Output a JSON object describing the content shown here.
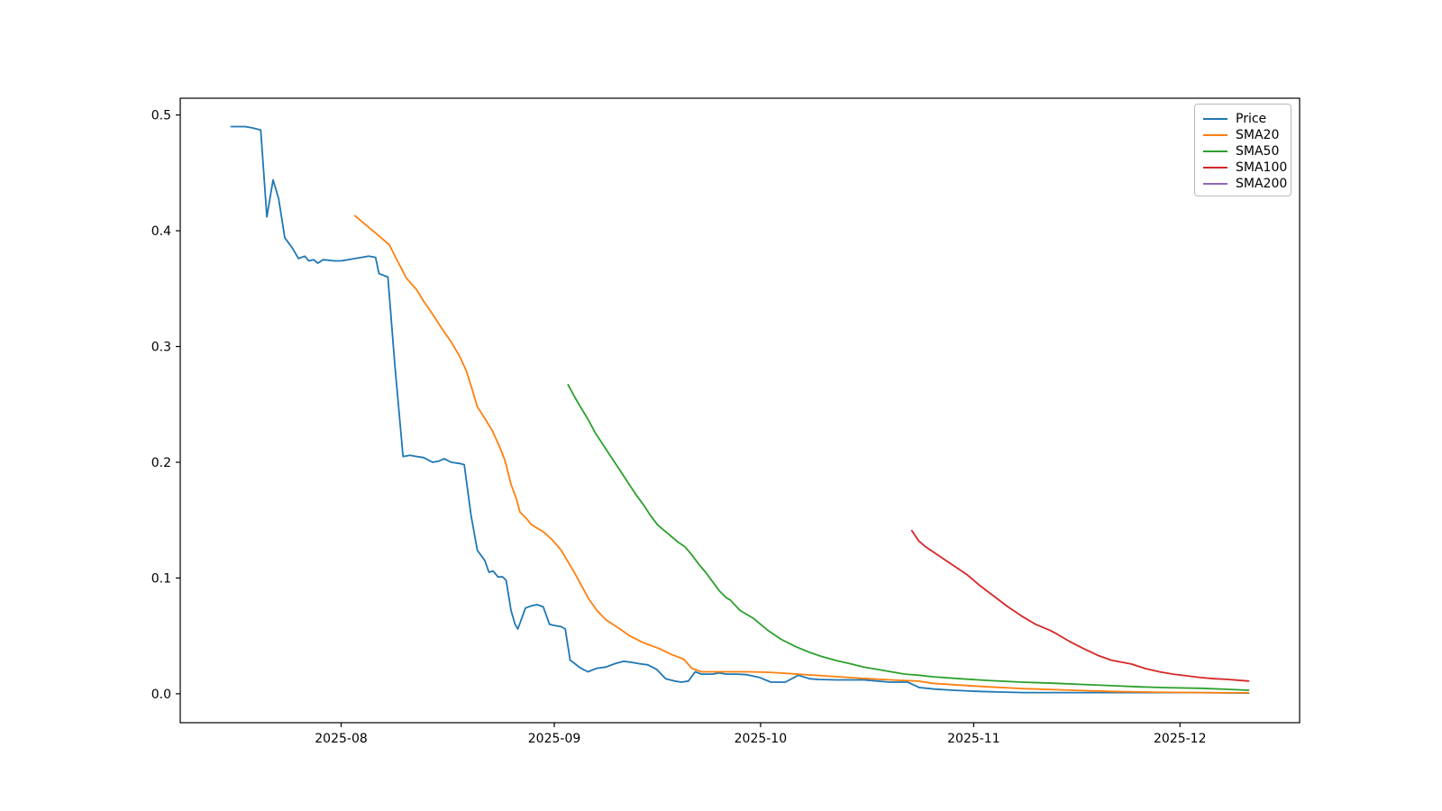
{
  "figure": {
    "background_color": "#ffffff",
    "axes_edge_color": "#000000",
    "tick_color": "#000000"
  },
  "legend": {
    "position": "upper right",
    "items": [
      {
        "label": "Price",
        "color": "#1f77b4"
      },
      {
        "label": "SMA20",
        "color": "#ff7f0e"
      },
      {
        "label": "SMA50",
        "color": "#2ca02c"
      },
      {
        "label": "SMA100",
        "color": "#d62728"
      },
      {
        "label": "SMA200",
        "color": "#9467bd"
      }
    ]
  },
  "chart_data": {
    "type": "line",
    "title": "",
    "xlabel": "",
    "ylabel": "",
    "grid": false,
    "legend_position": "upper right",
    "x_unit": "days since 2025-07-16",
    "xlim": [
      -7.4,
      155.4
    ],
    "ylim": [
      -0.025,
      0.5145
    ],
    "x_ticks": [
      {
        "day": 16,
        "label": "2025-08"
      },
      {
        "day": 47,
        "label": "2025-09"
      },
      {
        "day": 77,
        "label": "2025-10"
      },
      {
        "day": 108,
        "label": "2025-11"
      },
      {
        "day": 138,
        "label": "2025-12"
      }
    ],
    "y_ticks": [
      {
        "value": 0.0,
        "label": "0.0"
      },
      {
        "value": 0.1,
        "label": "0.1"
      },
      {
        "value": 0.2,
        "label": "0.2"
      },
      {
        "value": 0.3,
        "label": "0.3"
      },
      {
        "value": 0.4,
        "label": "0.4"
      },
      {
        "value": 0.5,
        "label": "0.5"
      }
    ],
    "series": [
      {
        "name": "Price",
        "color": "#1f77b4",
        "points": [
          [
            0,
            0.49
          ],
          [
            1,
            0.49
          ],
          [
            2,
            0.49
          ],
          [
            3,
            0.489
          ],
          [
            4.3,
            0.487
          ],
          [
            5.2,
            0.412
          ],
          [
            6.1,
            0.444
          ],
          [
            6.9,
            0.428
          ],
          [
            7.8,
            0.394
          ],
          [
            8.9,
            0.385
          ],
          [
            9.8,
            0.376
          ],
          [
            10.7,
            0.378
          ],
          [
            11.3,
            0.374
          ],
          [
            12,
            0.375
          ],
          [
            12.6,
            0.372
          ],
          [
            13.4,
            0.375
          ],
          [
            15,
            0.374
          ],
          [
            16,
            0.374
          ],
          [
            17,
            0.375
          ],
          [
            18,
            0.376
          ],
          [
            19,
            0.377
          ],
          [
            20,
            0.378
          ],
          [
            21,
            0.377
          ],
          [
            21.5,
            0.363
          ],
          [
            22.8,
            0.36
          ],
          [
            23.8,
            0.285
          ],
          [
            25,
            0.205
          ],
          [
            26,
            0.206
          ],
          [
            27,
            0.205
          ],
          [
            28,
            0.204
          ],
          [
            29.3,
            0.2
          ],
          [
            30.2,
            0.201
          ],
          [
            31,
            0.203
          ],
          [
            32,
            0.2
          ],
          [
            33.2,
            0.199
          ],
          [
            33.9,
            0.198
          ],
          [
            34.9,
            0.154
          ],
          [
            35.8,
            0.124
          ],
          [
            36.9,
            0.115
          ],
          [
            37.5,
            0.105
          ],
          [
            38.1,
            0.106
          ],
          [
            38.8,
            0.101
          ],
          [
            39.5,
            0.101
          ],
          [
            40,
            0.098
          ],
          [
            40.7,
            0.072
          ],
          [
            41.3,
            0.06
          ],
          [
            41.7,
            0.056
          ],
          [
            42.8,
            0.074
          ],
          [
            43.7,
            0.076
          ],
          [
            44.5,
            0.077
          ],
          [
            45.4,
            0.075
          ],
          [
            46.3,
            0.06
          ],
          [
            47,
            0.059
          ],
          [
            48,
            0.058
          ],
          [
            48.6,
            0.056
          ],
          [
            49.3,
            0.029
          ],
          [
            50,
            0.026
          ],
          [
            50.6,
            0.023
          ],
          [
            51.2,
            0.021
          ],
          [
            51.9,
            0.019
          ],
          [
            53.2,
            0.022
          ],
          [
            54.5,
            0.023
          ],
          [
            55.8,
            0.026
          ],
          [
            57.1,
            0.028
          ],
          [
            58.4,
            0.027
          ],
          [
            59.3,
            0.026
          ],
          [
            60.6,
            0.025
          ],
          [
            61.9,
            0.021
          ],
          [
            63.2,
            0.013
          ],
          [
            64.5,
            0.011
          ],
          [
            65.5,
            0.01
          ],
          [
            66.5,
            0.011
          ],
          [
            67.5,
            0.019
          ],
          [
            68.4,
            0.017
          ],
          [
            70,
            0.017
          ],
          [
            71,
            0.018
          ],
          [
            72,
            0.017
          ],
          [
            73.5,
            0.017
          ],
          [
            75,
            0.0165
          ],
          [
            76.9,
            0.014
          ],
          [
            78.5,
            0.01
          ],
          [
            80.6,
            0.01
          ],
          [
            82.5,
            0.016
          ],
          [
            84.1,
            0.013
          ],
          [
            85.4,
            0.0124
          ],
          [
            88,
            0.012
          ],
          [
            90,
            0.012
          ],
          [
            92,
            0.012
          ],
          [
            94,
            0.011
          ],
          [
            95.8,
            0.01
          ],
          [
            98.4,
            0.01
          ],
          [
            100.1,
            0.0054
          ],
          [
            102.3,
            0.004
          ],
          [
            105,
            0.003
          ],
          [
            108.8,
            0.002
          ],
          [
            112,
            0.0015
          ],
          [
            115.4,
            0.001
          ],
          [
            120,
            0.001
          ],
          [
            125,
            0.001
          ],
          [
            130,
            0.001
          ],
          [
            135,
            0.001
          ],
          [
            140,
            0.001
          ],
          [
            144,
            0.0008
          ],
          [
            148,
            0.0005
          ]
        ]
      },
      {
        "name": "SMA20",
        "color": "#ff7f0e",
        "points": [
          [
            18,
            0.413
          ],
          [
            19,
            0.408
          ],
          [
            20,
            0.403
          ],
          [
            21,
            0.398
          ],
          [
            22,
            0.393
          ],
          [
            23,
            0.388
          ],
          [
            24,
            0.376
          ],
          [
            25.5,
            0.359
          ],
          [
            27,
            0.349
          ],
          [
            28,
            0.339
          ],
          [
            29.3,
            0.328
          ],
          [
            30.6,
            0.316
          ],
          [
            32,
            0.304
          ],
          [
            33.2,
            0.292
          ],
          [
            34.2,
            0.279
          ],
          [
            35,
            0.264
          ],
          [
            35.8,
            0.248
          ],
          [
            37,
            0.237
          ],
          [
            38,
            0.227
          ],
          [
            39,
            0.214
          ],
          [
            39.8,
            0.202
          ],
          [
            40.7,
            0.181
          ],
          [
            41.5,
            0.168
          ],
          [
            42,
            0.157
          ],
          [
            43,
            0.151
          ],
          [
            43.7,
            0.146
          ],
          [
            45.4,
            0.14
          ],
          [
            46.7,
            0.133
          ],
          [
            48,
            0.124
          ],
          [
            49,
            0.114
          ],
          [
            50,
            0.104
          ],
          [
            51,
            0.093
          ],
          [
            52,
            0.082
          ],
          [
            53.2,
            0.072
          ],
          [
            54.5,
            0.064
          ],
          [
            56.3,
            0.057
          ],
          [
            58,
            0.05
          ],
          [
            60,
            0.044
          ],
          [
            62.3,
            0.039
          ],
          [
            64,
            0.034
          ],
          [
            65.8,
            0.03
          ],
          [
            67,
            0.022
          ],
          [
            68.4,
            0.019
          ],
          [
            70,
            0.019
          ],
          [
            72,
            0.019
          ],
          [
            75,
            0.019
          ],
          [
            78,
            0.0186
          ],
          [
            81,
            0.0175
          ],
          [
            84,
            0.0163
          ],
          [
            88,
            0.0148
          ],
          [
            92,
            0.0132
          ],
          [
            96,
            0.012
          ],
          [
            100,
            0.0109
          ],
          [
            102,
            0.009
          ],
          [
            106,
            0.0075
          ],
          [
            110,
            0.006
          ],
          [
            115,
            0.0045
          ],
          [
            120,
            0.0035
          ],
          [
            124,
            0.0027
          ],
          [
            128,
            0.002
          ],
          [
            134,
            0.0014
          ],
          [
            141,
            0.001
          ],
          [
            148,
            0.0008
          ]
        ]
      },
      {
        "name": "SMA50",
        "color": "#2ca02c",
        "points": [
          [
            49,
            0.267
          ],
          [
            50,
            0.256
          ],
          [
            51,
            0.246
          ],
          [
            52,
            0.236
          ],
          [
            53,
            0.225
          ],
          [
            54,
            0.216
          ],
          [
            55,
            0.207
          ],
          [
            56,
            0.198
          ],
          [
            57,
            0.189
          ],
          [
            58,
            0.18
          ],
          [
            59,
            0.171
          ],
          [
            60,
            0.163
          ],
          [
            61,
            0.154
          ],
          [
            62,
            0.146
          ],
          [
            63,
            0.141
          ],
          [
            64,
            0.136
          ],
          [
            65,
            0.131
          ],
          [
            66,
            0.127
          ],
          [
            67,
            0.12
          ],
          [
            68,
            0.112
          ],
          [
            69,
            0.105
          ],
          [
            70,
            0.097
          ],
          [
            71,
            0.089
          ],
          [
            72,
            0.083
          ],
          [
            72.6,
            0.081
          ],
          [
            74,
            0.072
          ],
          [
            76,
            0.065
          ],
          [
            78,
            0.055
          ],
          [
            80,
            0.047
          ],
          [
            82,
            0.041
          ],
          [
            84,
            0.036
          ],
          [
            86,
            0.032
          ],
          [
            88,
            0.0287
          ],
          [
            90,
            0.026
          ],
          [
            92,
            0.023
          ],
          [
            94,
            0.021
          ],
          [
            96,
            0.019
          ],
          [
            98,
            0.017
          ],
          [
            100,
            0.016
          ],
          [
            102,
            0.0147
          ],
          [
            106,
            0.013
          ],
          [
            110,
            0.0115
          ],
          [
            115,
            0.01
          ],
          [
            120,
            0.009
          ],
          [
            124,
            0.008
          ],
          [
            128,
            0.007
          ],
          [
            132,
            0.006
          ],
          [
            136,
            0.0053
          ],
          [
            141,
            0.0047
          ],
          [
            145,
            0.0038
          ],
          [
            148,
            0.003
          ]
        ]
      },
      {
        "name": "SMA100",
        "color": "#d62728",
        "points": [
          [
            99,
            0.141
          ],
          [
            100,
            0.132
          ],
          [
            101,
            0.127
          ],
          [
            102,
            0.123
          ],
          [
            104,
            0.115
          ],
          [
            105,
            0.111
          ],
          [
            107,
            0.103
          ],
          [
            109,
            0.093
          ],
          [
            111,
            0.084
          ],
          [
            113,
            0.075
          ],
          [
            115,
            0.067
          ],
          [
            117,
            0.06
          ],
          [
            119,
            0.055
          ],
          [
            120,
            0.052
          ],
          [
            122,
            0.045
          ],
          [
            124,
            0.039
          ],
          [
            126,
            0.0333
          ],
          [
            128,
            0.029
          ],
          [
            131,
            0.0256
          ],
          [
            133,
            0.0217
          ],
          [
            135,
            0.019
          ],
          [
            137,
            0.017
          ],
          [
            139,
            0.0155
          ],
          [
            141,
            0.014
          ],
          [
            143,
            0.013
          ],
          [
            145,
            0.0124
          ],
          [
            148,
            0.011
          ]
        ]
      },
      {
        "name": "SMA200",
        "color": "#9467bd",
        "points": []
      }
    ]
  }
}
